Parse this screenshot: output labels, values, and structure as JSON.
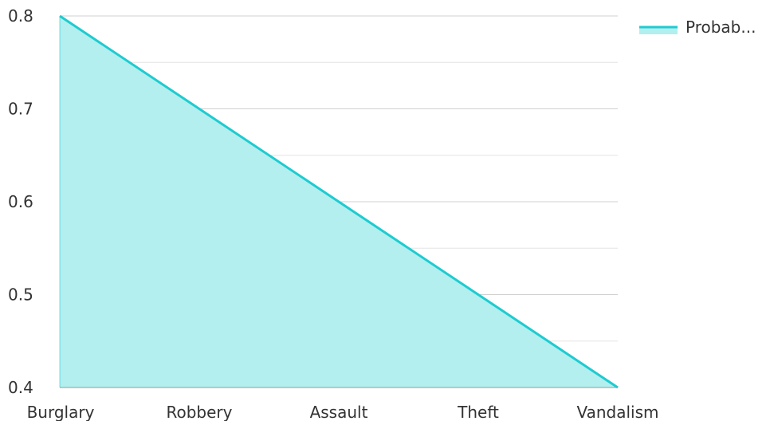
{
  "chart_data": {
    "type": "area",
    "categories": [
      "Burglary",
      "Robbery",
      "Assault",
      "Theft",
      "Vandalism"
    ],
    "series": [
      {
        "name": "Probab...",
        "values": [
          0.8,
          0.7,
          0.6,
          0.5,
          0.4
        ]
      }
    ],
    "ylim": [
      0.4,
      0.8
    ],
    "yticks": [
      0.4,
      0.5,
      0.6,
      0.7,
      0.8
    ],
    "ytick_labels": [
      "0.4",
      "0.5",
      "0.6",
      "0.7",
      "0.8"
    ],
    "grid": true,
    "legend": "top-right",
    "colors": {
      "line": "#1ecbd0",
      "fill": "#b2efee",
      "grid": "#d0d0d0",
      "axis": "#999999"
    }
  }
}
